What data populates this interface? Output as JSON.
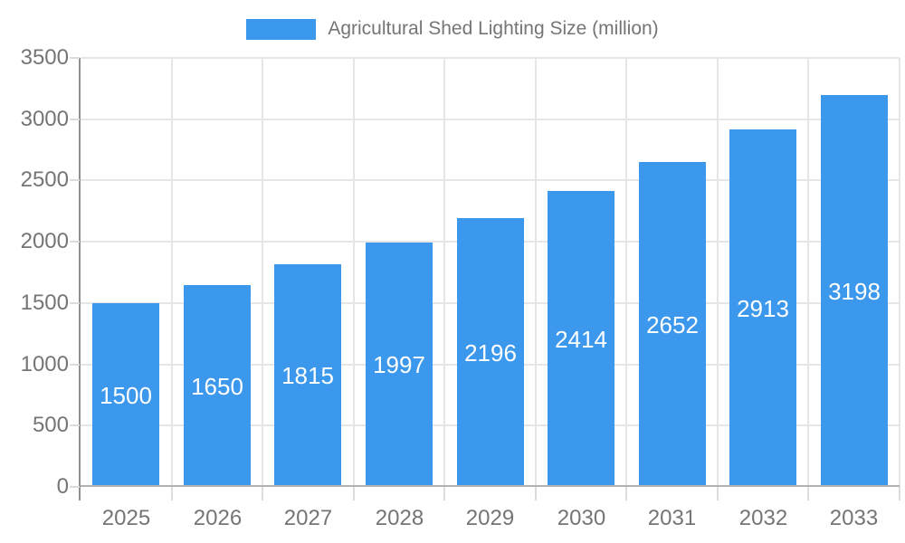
{
  "chart_data": {
    "type": "bar",
    "title": "Agricultural Shed Lighting Size (million)",
    "legend_label": "Agricultural Shed Lighting Size (million)",
    "categories": [
      "2025",
      "2026",
      "2027",
      "2028",
      "2029",
      "2030",
      "2031",
      "2032",
      "2033"
    ],
    "series": [
      {
        "name": "Agricultural Shed Lighting Size (million)",
        "values": [
          1500,
          1650,
          1815,
          1997,
          2196,
          2414,
          2652,
          2913,
          3198
        ]
      }
    ],
    "bar_value_labels": [
      "1500",
      "1650",
      "1815",
      "1997",
      "2196",
      "2414",
      "2652",
      "2913",
      "3198"
    ],
    "xlabel": "",
    "ylabel": "",
    "ylim": [
      0,
      3500
    ],
    "yticks": [
      0,
      500,
      1000,
      1500,
      2000,
      2500,
      3000,
      3500
    ],
    "grid": true,
    "legend_position": "top-center",
    "colors": {
      "bar": "#3B98EC",
      "bar_value_label": "#FFFFFF",
      "axis_text": "#757575",
      "legend_text": "#757575",
      "gridline": "#E6E6E6",
      "tick": "#DCDCDC",
      "baseline": "#B3B3B3",
      "axis_line": "#8F8F8F",
      "background": "#FFFFFF"
    }
  }
}
